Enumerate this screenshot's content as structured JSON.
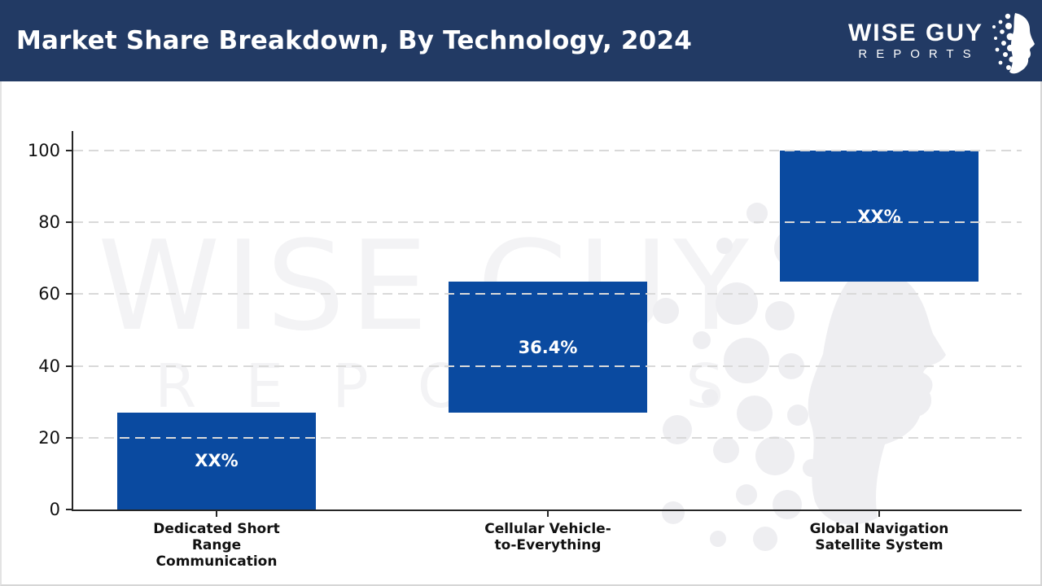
{
  "header": {
    "title": "Market Share Breakdown, By Technology, 2024",
    "logo": {
      "brand": "WISE GUY",
      "sub": "REPORTS"
    }
  },
  "watermark": {
    "brand": "WISE GUY",
    "sub": "REPORTS"
  },
  "chart_data": {
    "type": "bar",
    "subtype": "waterfall",
    "title": "Market Share Breakdown, By Technology, 2024",
    "categories": [
      "Dedicated Short\nRange\nCommunication",
      "Cellular Vehicle-\nto-Everything",
      "Global Navigation\nSatellite System"
    ],
    "series": [
      {
        "name": "Dedicated Short Range Communication",
        "start": 0,
        "end": 27,
        "label": "XX%"
      },
      {
        "name": "Cellular Vehicle-to-Everything",
        "start": 27,
        "end": 63.4,
        "label": "36.4%"
      },
      {
        "name": "Global Navigation Satellite System",
        "start": 63.4,
        "end": 100,
        "label": "XX%"
      }
    ],
    "yticks": [
      0,
      20,
      40,
      60,
      80,
      100
    ],
    "ylim": [
      0,
      105
    ],
    "grid": true,
    "grid_style": "dashed",
    "legend": "none",
    "bar_color": "#0a4aa0",
    "bar_label_color": "#ffffff",
    "axis_color": "#262626",
    "grid_color": "#d9d9d9",
    "header_color": "#223a64"
  }
}
